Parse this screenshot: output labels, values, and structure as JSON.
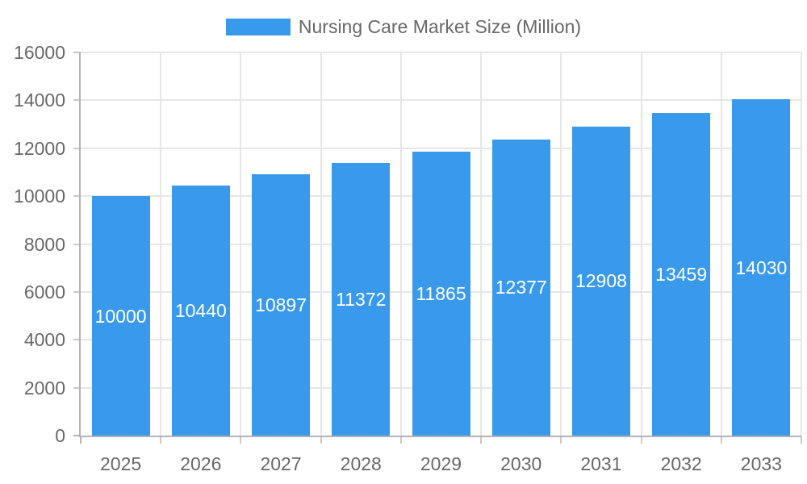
{
  "legend": {
    "label": "Nursing Care Market Size (Million)"
  },
  "chart_data": {
    "type": "bar",
    "title": "Nursing Care Market Size (Million)",
    "series_name": "Nursing Care Market Size (Million)",
    "categories": [
      "2025",
      "2026",
      "2027",
      "2028",
      "2029",
      "2030",
      "2031",
      "2032",
      "2033"
    ],
    "values": [
      10000,
      10440,
      10897,
      11372,
      11865,
      12377,
      12908,
      13459,
      14030
    ],
    "bar_labels": [
      "10000",
      "10440",
      "10897",
      "11372",
      "11865",
      "12377",
      "12908",
      "13459",
      "14030"
    ],
    "xlabel": "",
    "ylabel": "",
    "ylim": [
      0,
      16000
    ],
    "ytick_step": 2000,
    "ytick_labels": [
      "0",
      "2000",
      "4000",
      "6000",
      "8000",
      "10000",
      "12000",
      "14000",
      "16000"
    ],
    "grid": true,
    "legend_position": "top",
    "colors": {
      "bar": "#3999EB",
      "bar_label_text": "#FFFFFF",
      "axis_text": "#686868",
      "grid_line": "#E6E6E6",
      "axis_line": "#B3B3B3",
      "tick_mark": "#C9C9C9",
      "background": "#FFFFFF"
    }
  }
}
